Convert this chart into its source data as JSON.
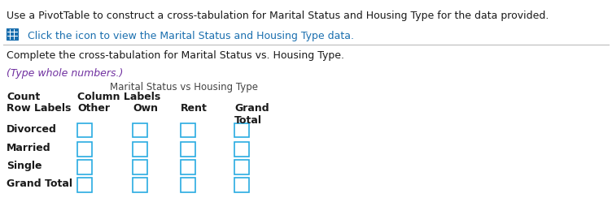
{
  "title_text": "Use a PivotTable to construct a cross-tabulation for Marital Status and Housing Type for the data provided.",
  "icon_text": "Click the icon to view the Marital Status and Housing Type data.",
  "instruction_text": "Complete the cross-tabulation for Marital Status vs. Housing Type.",
  "type_hint": "(Type whole numbers.)",
  "pivot_title": "Marital Status vs Housing Type",
  "count_label": "Count",
  "col_labels_label": "Column Labels",
  "row_labels_label": "Row Labels",
  "col_headers": [
    "Other",
    "Own",
    "Rent",
    "Grand\nTotal"
  ],
  "row_headers": [
    "Divorced",
    "Married",
    "Single",
    "Grand Total"
  ],
  "title_color": "#1a1a1a",
  "icon_color": "#1a6faf",
  "instruction_color": "#1a1a1a",
  "type_hint_color": "#7030a0",
  "pivot_title_color": "#444444",
  "header_color": "#1a1a1a",
  "box_color": "#29abe2",
  "separator_color": "#bbbbbb",
  "bg_color": "#ffffff",
  "title_fontsize": 9.0,
  "body_fontsize": 9.0,
  "small_fontsize": 8.5,
  "bold_headers": [
    "Count",
    "Column Labels",
    "Row Labels",
    "Other",
    "Own",
    "Rent",
    "Grand\nTotal",
    "Divorced",
    "Married",
    "Single",
    "Grand Total"
  ]
}
